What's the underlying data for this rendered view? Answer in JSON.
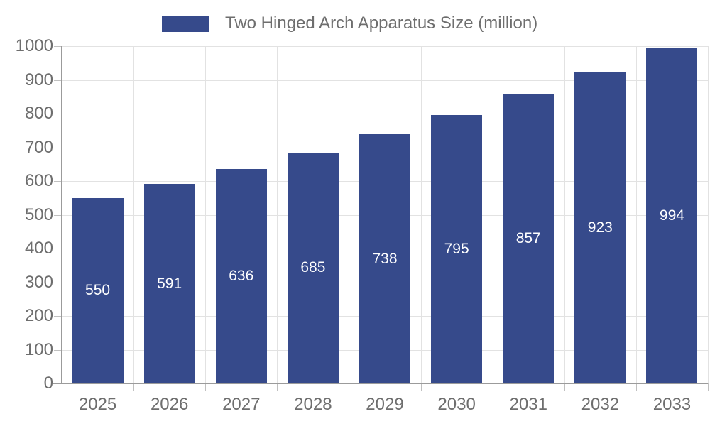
{
  "legend": {
    "label": "Two Hinged Arch Apparatus Size (million)"
  },
  "chart_data": {
    "type": "bar",
    "title": "",
    "series_name": "Two Hinged Arch Apparatus Size (million)",
    "categories": [
      "2025",
      "2026",
      "2027",
      "2028",
      "2029",
      "2030",
      "2031",
      "2032",
      "2033"
    ],
    "values": [
      550,
      591,
      636,
      685,
      738,
      795,
      857,
      923,
      994
    ],
    "xlabel": "",
    "ylabel": "",
    "ylim": [
      0,
      1000
    ],
    "yticks": [
      0,
      100,
      200,
      300,
      400,
      500,
      600,
      700,
      800,
      900,
      1000
    ],
    "grid": true,
    "legend_position": "top",
    "bar_color": "#364a8b",
    "bar_label_color": "#ffffff",
    "axis_text_color": "#6e6e6e",
    "grid_color": "#e2e2e2",
    "axis_line_color": "#9b9b9b",
    "background_color": "#ffffff"
  }
}
